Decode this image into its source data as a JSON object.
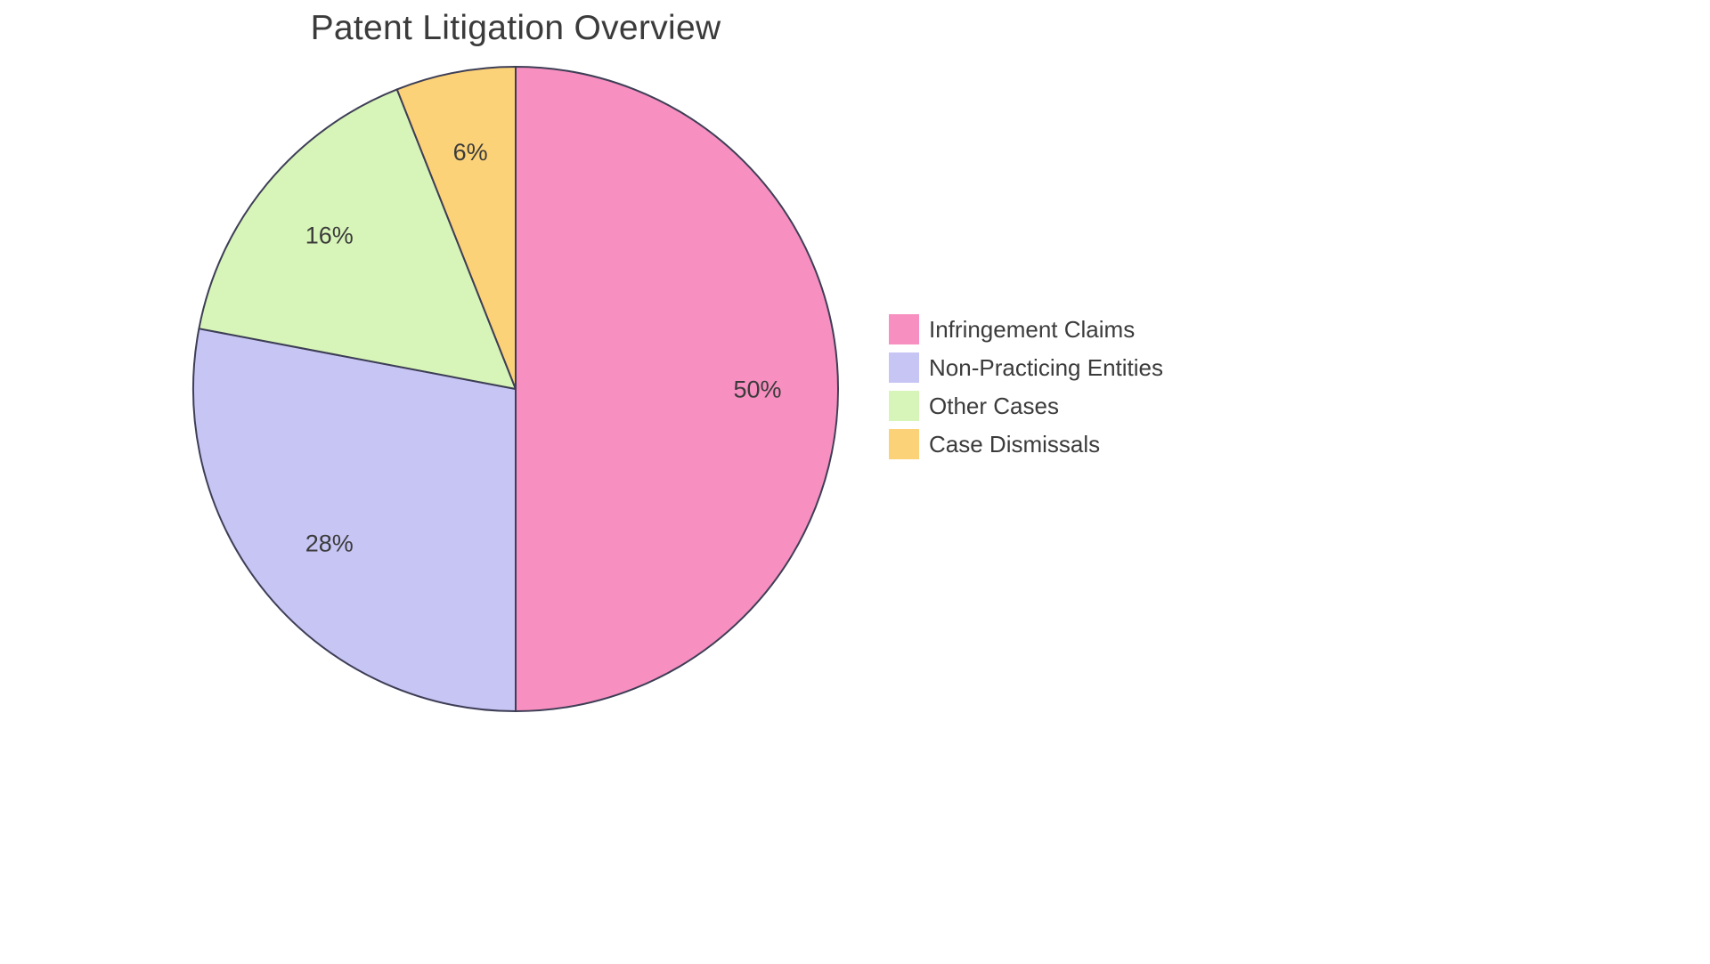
{
  "chart_data": {
    "type": "pie",
    "title": "Patent Litigation Overview",
    "categories": [
      "Infringement Claims",
      "Non-Practicing Entities",
      "Other Cases",
      "Case Dismissals"
    ],
    "values": [
      50,
      28,
      16,
      6
    ],
    "slice_labels": [
      "50%",
      "28%",
      "16%",
      "6%"
    ],
    "colors": [
      "#F78FC0",
      "#C7C5F4",
      "#D7F5B8",
      "#FBD278"
    ],
    "stroke_color": "#3E3E56",
    "text_color": "#3B3B3B",
    "start_angle_deg": 0,
    "direction": "clockwise",
    "legend_position": "right",
    "grid": false
  }
}
